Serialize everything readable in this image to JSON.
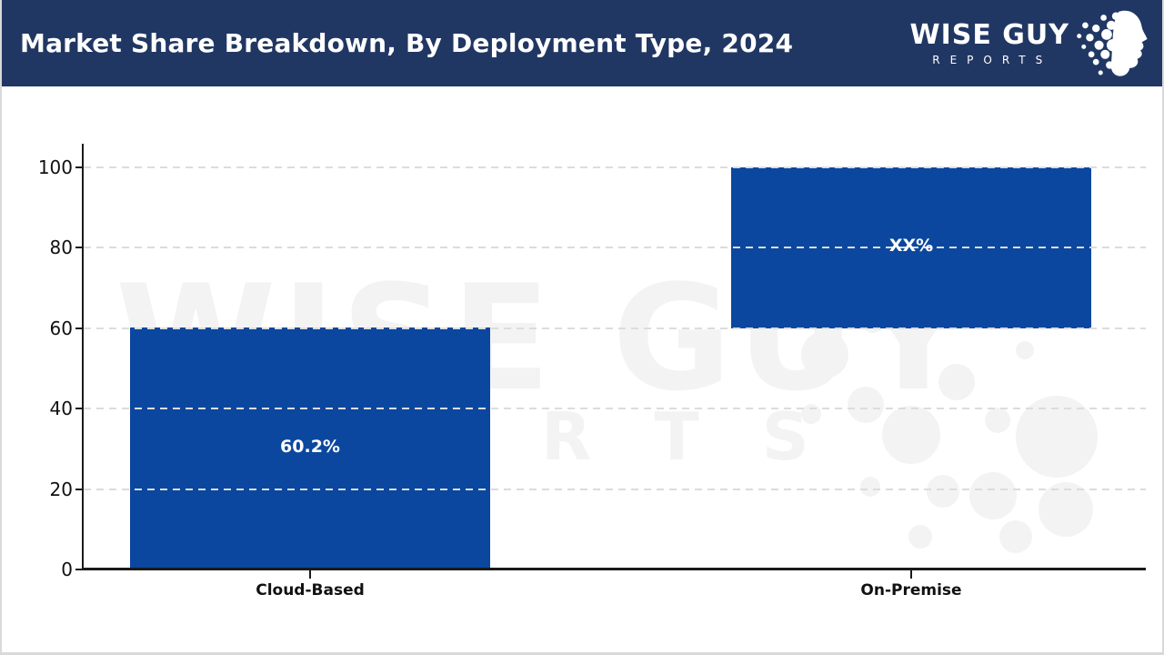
{
  "header": {
    "title": "Market Share Breakdown, By Deployment Type, 2024",
    "logo": {
      "line1": "WISE GUY",
      "line2": "REPORTS"
    }
  },
  "watermark": {
    "line1": "WISE GUY",
    "line2": "R T S"
  },
  "colors": {
    "header_bg": "#213763",
    "bar_blue": "#0b479e",
    "gridline": "#dcdcdc",
    "axis": "#1a1a1a",
    "watermark": "#f3f3f3"
  },
  "chart_data": {
    "type": "bar",
    "title": "Market Share Breakdown, By Deployment Type, 2024",
    "categories": [
      "Cloud-Based",
      "On-Premise"
    ],
    "series": [
      {
        "name": "Market share (%)",
        "bars": [
          {
            "category": "Cloud-Based",
            "from": 0,
            "to": 60.2,
            "label": "60.2%"
          },
          {
            "category": "On-Premise",
            "from": 60,
            "to": 100,
            "label": "XX%"
          }
        ]
      }
    ],
    "xlabel": "",
    "ylabel": "",
    "yticks": [
      0,
      20,
      40,
      60,
      80,
      100
    ],
    "ylim": [
      0,
      106
    ],
    "grid": "horizontal-dashed",
    "legend": "none",
    "bar_color": "#0b479e",
    "value_label_color": "#ffffff",
    "note": "On-Premise bar is a floating bar spanning 60 to 100 with redacted value label XX%"
  }
}
